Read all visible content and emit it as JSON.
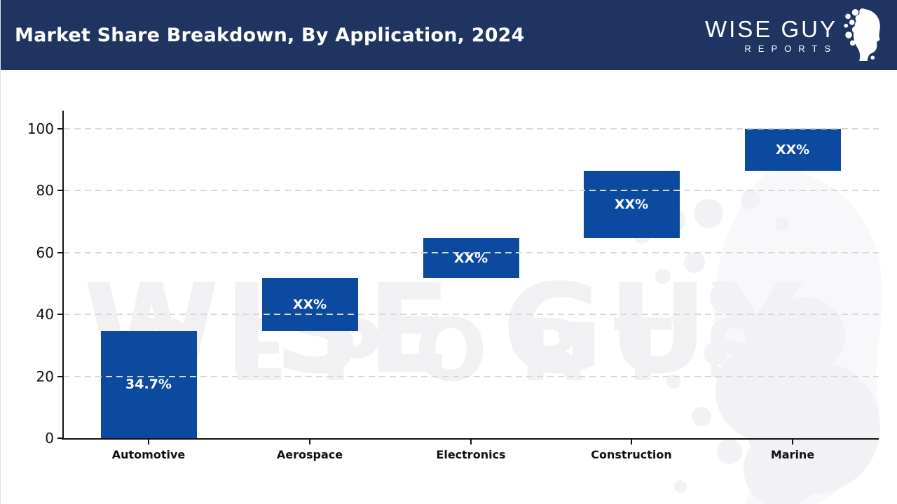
{
  "header": {
    "title": "Market Share Breakdown, By Application, 2024"
  },
  "logo": {
    "line1": "WISE GUY",
    "line2": "REPORTS"
  },
  "watermark": {
    "line1": "WISE GUY",
    "line2": "REPORTS"
  },
  "colors": {
    "header_bg": "#1f3461",
    "bar": "#0b4a9e",
    "bar_label": "#ffffff",
    "gridline": "#d8d8d8",
    "axis": "#111111",
    "watermark": "#f1f1f4"
  },
  "chart_data": {
    "type": "bar",
    "variant": "waterfall-floating-bars",
    "title": "Market Share Breakdown, By Application, 2024",
    "categories": [
      "Automotive",
      "Aerospace",
      "Electronics",
      "Construction",
      "Marine"
    ],
    "segments": [
      {
        "category": "Automotive",
        "start": 0,
        "end": 34.7,
        "label": "34.7%"
      },
      {
        "category": "Aerospace",
        "start": 34.7,
        "end": 51.8,
        "label": "XX%"
      },
      {
        "category": "Electronics",
        "start": 51.8,
        "end": 64.7,
        "label": "XX%"
      },
      {
        "category": "Construction",
        "start": 64.7,
        "end": 86.4,
        "label": "XX%"
      },
      {
        "category": "Marine",
        "start": 86.4,
        "end": 100,
        "label": "XX%"
      }
    ],
    "xlabel": "",
    "ylabel": "",
    "ylim": [
      0,
      100
    ],
    "yticks": [
      0,
      20,
      40,
      60,
      80,
      100
    ],
    "grid": "horizontal-dashed-over-bars",
    "legend": "none"
  }
}
